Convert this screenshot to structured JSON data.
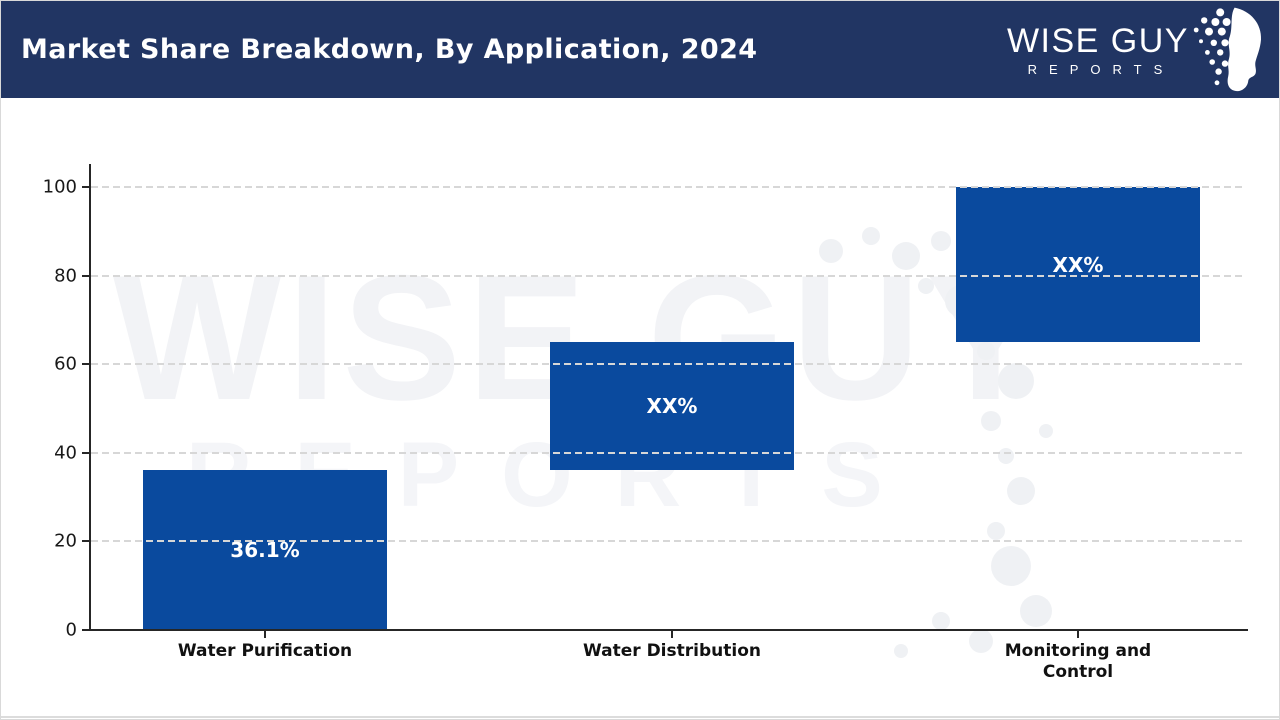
{
  "header": {
    "title": "Market Share Breakdown, By Application, 2024",
    "logo": {
      "line1": "WISE GUY",
      "line2": "REPORTS"
    }
  },
  "watermark": {
    "line1": "WISE GUY",
    "line2": "REPORTS"
  },
  "chart_data": {
    "type": "bar",
    "subtype": "waterfall",
    "title": "Market Share Breakdown, By Application, 2024",
    "categories": [
      "Water Purification",
      "Water Distribution",
      "Monitoring and Control"
    ],
    "bars": [
      {
        "category": "Water Purification",
        "start": 0,
        "end": 36.1,
        "label": "36.1%"
      },
      {
        "category": "Water Distribution",
        "start": 36.1,
        "end": 65,
        "label": "XX%"
      },
      {
        "category": "Monitoring and Control",
        "start": 65,
        "end": 100,
        "label": "XX%"
      }
    ],
    "yticks": [
      0,
      20,
      40,
      60,
      80,
      100
    ],
    "ylim": [
      0,
      105
    ],
    "grid": "horizontal-dashed",
    "legend": "none",
    "bar_color": "#0a4a9e",
    "bar_label_color": "#ffffff"
  },
  "colors": {
    "header_bg": "#213563",
    "bar": "#0a4a9e",
    "grid": "#d7d7d7",
    "axis": "#262626",
    "watermark": "#f2f3f6"
  }
}
